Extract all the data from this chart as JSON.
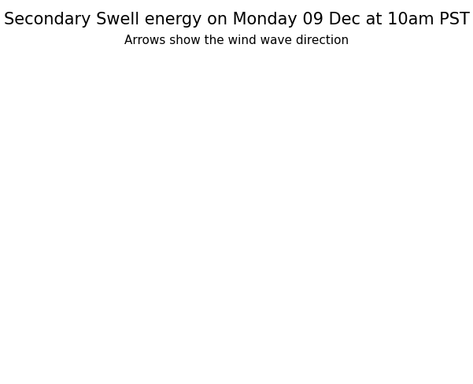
{
  "title": "Secondary Swell energy on Monday 09 Dec at 10am PST",
  "subtitle": "Arrows show the wind wave direction",
  "title_fontsize": 15,
  "subtitle_fontsize": 11,
  "background_color": "#ffffff",
  "border_color": "#000000",
  "map_extent": [
    -130,
    -102,
    28,
    50
  ],
  "figsize": [
    6.01,
    4.89
  ],
  "dpi": 100
}
